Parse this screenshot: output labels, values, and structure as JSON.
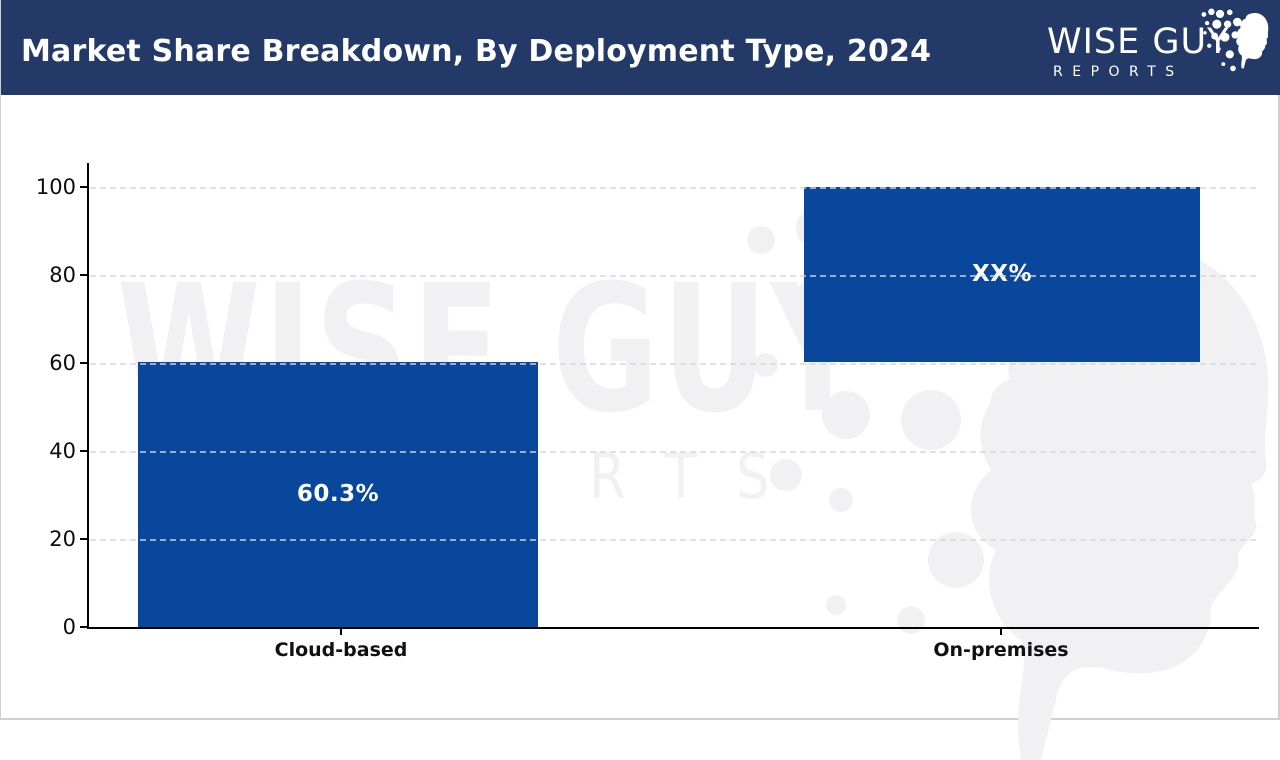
{
  "header": {
    "title": "Market Share Breakdown, By Deployment Type, 2024",
    "logo": {
      "line1": "WISE GUY",
      "line2": "REPORTS"
    }
  },
  "watermark": {
    "line1": "WISE GUY",
    "letters": {
      "l1": "R",
      "l2": "T",
      "l3": "S"
    }
  },
  "chart_data": {
    "type": "bar",
    "subtype": "stacked-floating-segments",
    "title": "Market Share Breakdown, By Deployment Type, 2024",
    "categories": [
      "Cloud-based",
      "On-premises"
    ],
    "bars": [
      {
        "category": "Cloud-based",
        "start": 0,
        "end": 60.3,
        "value": 60.3,
        "label": "60.3%"
      },
      {
        "category": "On-premises",
        "start": 60.3,
        "end": 100,
        "value": 39.7,
        "label": "XX%"
      }
    ],
    "ylim": [
      0,
      105.5
    ],
    "yticks": [
      0,
      20,
      40,
      60,
      80,
      100
    ],
    "grid": "horizontal dashed, drawn over bars",
    "legend": "none",
    "bar_color": "#08479b",
    "bar_label_color": "#ffffff",
    "header_bg_color": "#233968",
    "axis_color": "#000000",
    "gridline_color": "#d5d5d5",
    "watermark_color": "#f1f1f4"
  }
}
